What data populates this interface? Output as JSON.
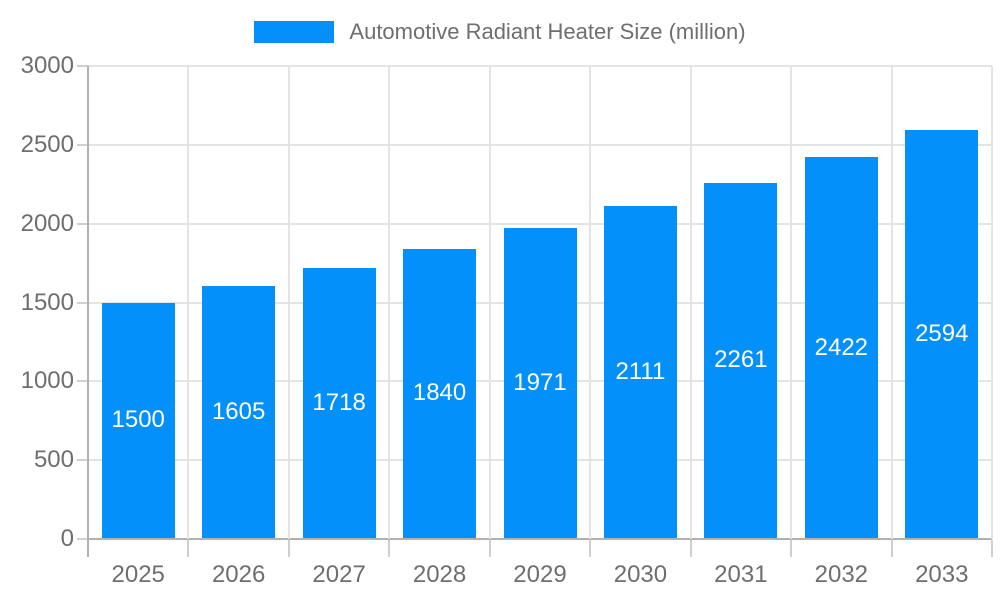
{
  "legend": {
    "label": "Automotive Radiant Heater Size (million)"
  },
  "chart_data": {
    "type": "bar",
    "title": "Automotive Radiant Heater Size (million)",
    "categories": [
      "2025",
      "2026",
      "2027",
      "2028",
      "2029",
      "2030",
      "2031",
      "2032",
      "2033"
    ],
    "values": [
      1500,
      1605,
      1718,
      1840,
      1971,
      2111,
      2261,
      2422,
      2594
    ],
    "series": [
      {
        "name": "Automotive Radiant Heater Size (million)",
        "values": [
          1500,
          1605,
          1718,
          1840,
          1971,
          2111,
          2261,
          2422,
          2594
        ]
      }
    ],
    "xlabel": "",
    "ylabel": "",
    "ylim": [
      0,
      3000
    ],
    "yticks": [
      0,
      500,
      1000,
      1500,
      2000,
      2500,
      3000
    ],
    "grid": true,
    "legend_position": "top",
    "value_label_position": "inside-center",
    "colors": {
      "bar": "#0390fa",
      "grid": "#e4e4e4",
      "axis": "#b1b1b1",
      "tick": "#cfcfcf",
      "text": "#6e6e6e",
      "value_label": "#ffffff",
      "background": "#ffffff"
    }
  }
}
